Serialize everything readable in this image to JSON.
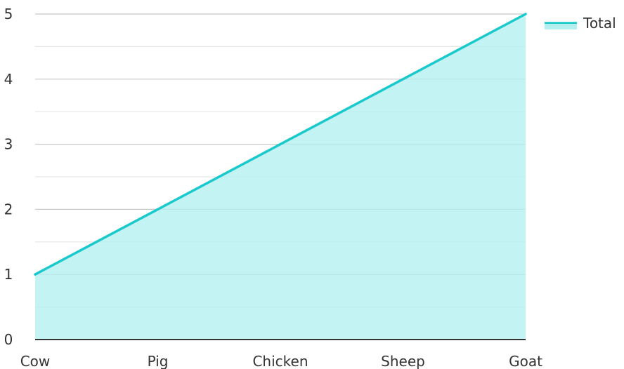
{
  "chart_data": {
    "type": "area",
    "categories": [
      "Cow",
      "Pig",
      "Chicken",
      "Sheep",
      "Goat"
    ],
    "series": [
      {
        "name": "Total",
        "values": [
          1,
          2,
          3,
          4,
          5
        ]
      }
    ],
    "ylim": [
      0,
      5
    ],
    "yticks": [
      "0",
      "1",
      "2",
      "3",
      "4",
      "5"
    ],
    "grid": true,
    "legend": "top-right",
    "colors": {
      "line": "#19c9cc",
      "fill": "#b2efee",
      "grid_major": "#c8c8c8",
      "grid_minor": "#e6e6e6",
      "axis": "#333333"
    }
  }
}
